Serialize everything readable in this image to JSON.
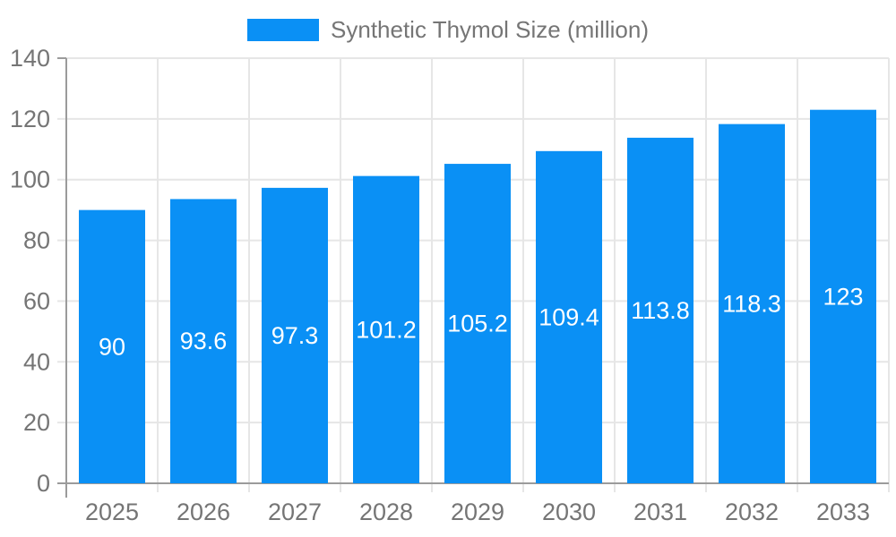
{
  "chart_data": {
    "type": "bar",
    "title": "",
    "series_name": "Synthetic Thymol Size (million)",
    "categories": [
      "2025",
      "2026",
      "2027",
      "2028",
      "2029",
      "2030",
      "2031",
      "2032",
      "2033"
    ],
    "values": [
      90,
      93.6,
      97.3,
      101.2,
      105.2,
      109.4,
      113.8,
      118.3,
      123
    ],
    "bar_value_labels": [
      "90",
      "93.6",
      "97.3",
      "101.2",
      "105.2",
      "109.4",
      "113.8",
      "118.3",
      "123"
    ],
    "xlabel": "",
    "ylabel": "",
    "ylim": [
      0,
      140
    ],
    "ytick_step": 20,
    "ytick_labels": [
      "0",
      "20",
      "40",
      "60",
      "80",
      "100",
      "120",
      "140"
    ],
    "grid": true,
    "legend_position": "top"
  },
  "colors": {
    "bar": "#0a90f5",
    "bar_label": "#ffffff",
    "axis_line": "#9b9b9b",
    "gridline": "#e6e6e6",
    "tick_label": "#757575",
    "legend_text": "#757575",
    "background": "#ffffff"
  }
}
